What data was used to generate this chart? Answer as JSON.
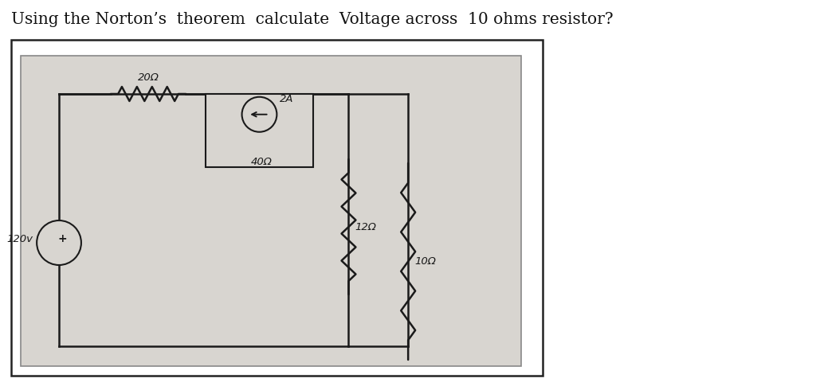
{
  "title": "Using the Norton’s  theorem  calculate  Voltage across  10 ohms resistor?",
  "title_fontsize": 14.5,
  "bg_color": "#ffffff",
  "outer_box_color": "#222222",
  "circuit_bg": "#d8d5d0",
  "fig_width": 10.24,
  "fig_height": 4.9,
  "resistor_20_label": "20Ω",
  "resistor_40_label": "40Ω",
  "resistor_12_label": "12Ω",
  "resistor_10_label": "10Ω",
  "source_label": "2A",
  "voltage_label": "120v"
}
